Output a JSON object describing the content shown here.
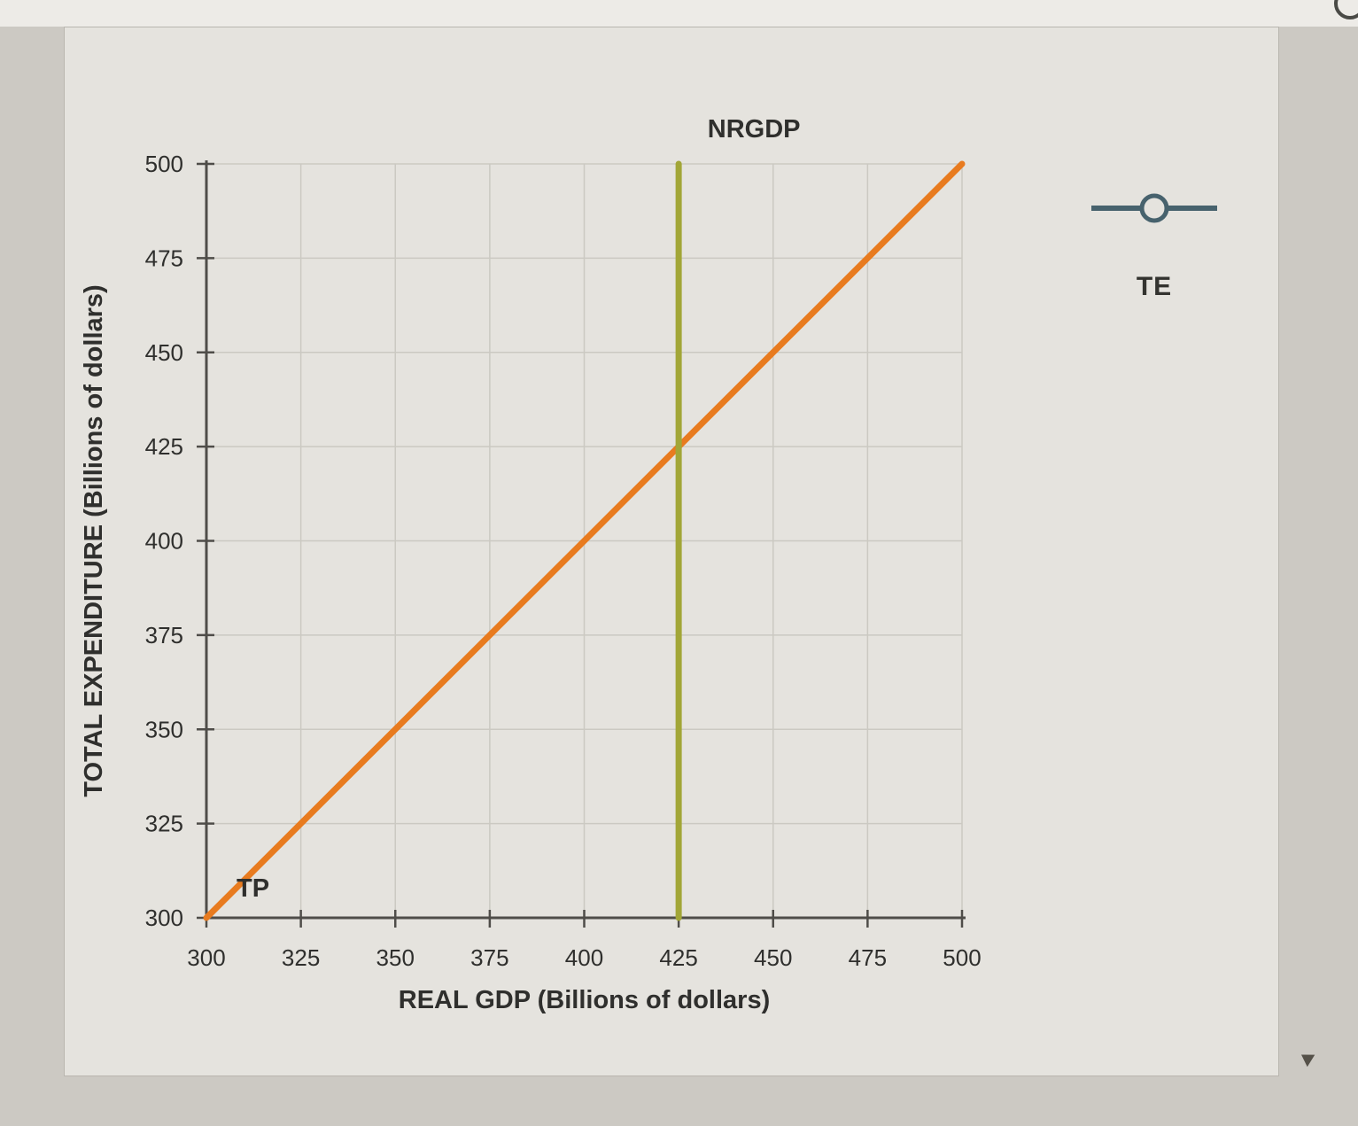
{
  "chart_data": {
    "type": "line",
    "title": "",
    "xlabel": "REAL GDP (Billions of dollars)",
    "ylabel": "TOTAL EXPENDITURE (Billions of dollars)",
    "xlim": [
      300,
      500
    ],
    "ylim": [
      300,
      500
    ],
    "xticks": [
      300,
      325,
      350,
      375,
      400,
      425,
      450,
      475,
      500
    ],
    "yticks": [
      300,
      325,
      350,
      375,
      400,
      425,
      450,
      475,
      500
    ],
    "grid": true,
    "series": [
      {
        "name": "TP",
        "label": "TP",
        "color": "#e87b1f",
        "points": [
          [
            300,
            300
          ],
          [
            500,
            500
          ]
        ],
        "label_position": "start"
      },
      {
        "name": "NRGDP",
        "label": "NRGDP",
        "color": "#a2a637",
        "points": [
          [
            425,
            300
          ],
          [
            425,
            500
          ]
        ],
        "label_position": "top"
      }
    ],
    "legend": {
      "position": "top-right",
      "entries": [
        {
          "label": "TE",
          "marker": "line-circle-handle",
          "color": "#47626d"
        }
      ]
    },
    "intersection_point": [
      425,
      425
    ]
  },
  "labels": {
    "tp_curve": "TP",
    "nrgdp_line": "NRGDP",
    "te_legend": "TE"
  },
  "colors": {
    "tp_line": "#e87b1f",
    "nrgdp_line": "#a2a637",
    "te_marker": "#47626d",
    "axis": "#4f4d49",
    "grid": "#cbc9c2",
    "text": "#2f2f2d",
    "background": "#e5e3de"
  }
}
